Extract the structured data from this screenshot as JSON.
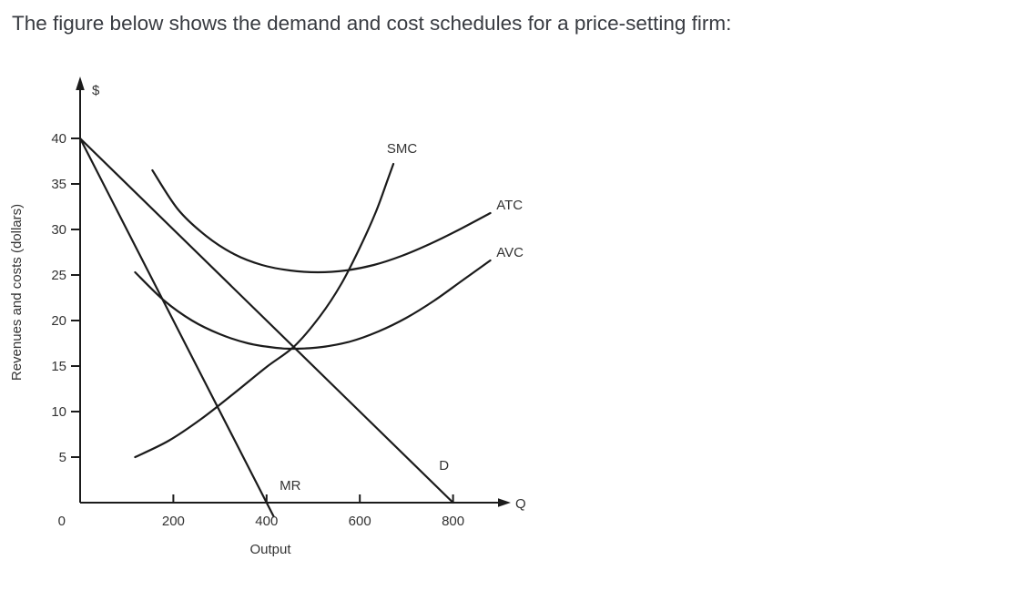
{
  "page": {
    "title": "The figure below shows the demand and cost schedules for a price-setting firm:"
  },
  "chart_data": {
    "type": "line",
    "title": "",
    "xlabel": "Output",
    "ylabel": "Revenues and costs (dollars)",
    "x_axis_symbol": "Q",
    "y_axis_symbol": "$",
    "origin_label": "0",
    "xlim": [
      0,
      920
    ],
    "ylim": [
      0,
      43
    ],
    "x_ticks": [
      200,
      400,
      600,
      800
    ],
    "y_ticks": [
      5,
      10,
      15,
      20,
      25,
      30,
      35,
      40
    ],
    "grid": false,
    "legend_position": "none (curves labeled inline)",
    "line_color": "#1b1b1b",
    "series": [
      {
        "id": "ATC",
        "label": "ATC",
        "smooth": true,
        "points": [
          [
            155,
            36.5
          ],
          [
            210,
            32.2
          ],
          [
            270,
            29.3
          ],
          [
            330,
            27.3
          ],
          [
            390,
            26.1
          ],
          [
            450,
            25.5
          ],
          [
            510,
            25.3
          ],
          [
            570,
            25.5
          ],
          [
            630,
            26.1
          ],
          [
            690,
            27.1
          ],
          [
            750,
            28.4
          ],
          [
            810,
            29.9
          ],
          [
            880,
            31.8
          ]
        ],
        "label_at": [
          893,
          32.2
        ]
      },
      {
        "id": "AVC",
        "label": "AVC",
        "smooth": true,
        "points": [
          [
            118,
            25.3
          ],
          [
            180,
            22.2
          ],
          [
            240,
            20.0
          ],
          [
            300,
            18.5
          ],
          [
            360,
            17.5
          ],
          [
            420,
            17.0
          ],
          [
            460,
            16.9
          ],
          [
            520,
            17.1
          ],
          [
            580,
            17.7
          ],
          [
            640,
            18.8
          ],
          [
            700,
            20.3
          ],
          [
            760,
            22.2
          ],
          [
            820,
            24.4
          ],
          [
            880,
            26.6
          ]
        ],
        "label_at": [
          893,
          27.0
        ]
      },
      {
        "id": "SMC",
        "label": "SMC",
        "smooth": true,
        "points": [
          [
            118,
            5.0
          ],
          [
            190,
            6.8
          ],
          [
            260,
            9.2
          ],
          [
            330,
            12.0
          ],
          [
            400,
            14.9
          ],
          [
            460,
            17.2
          ],
          [
            515,
            20.5
          ],
          [
            560,
            24.0
          ],
          [
            600,
            28.0
          ],
          [
            635,
            32.0
          ],
          [
            660,
            35.5
          ],
          [
            672,
            37.2
          ]
        ],
        "label_at": [
          658,
          38.4
        ]
      },
      {
        "id": "MR",
        "label": "MR",
        "smooth": false,
        "points": [
          [
            0,
            40
          ],
          [
            415,
            -1.5
          ]
        ],
        "label_at": [
          428,
          1.4
        ]
      },
      {
        "id": "D",
        "label": "D",
        "smooth": false,
        "points": [
          [
            0,
            40
          ],
          [
            800,
            0
          ]
        ],
        "label_at": [
          770,
          3.6
        ]
      }
    ]
  }
}
